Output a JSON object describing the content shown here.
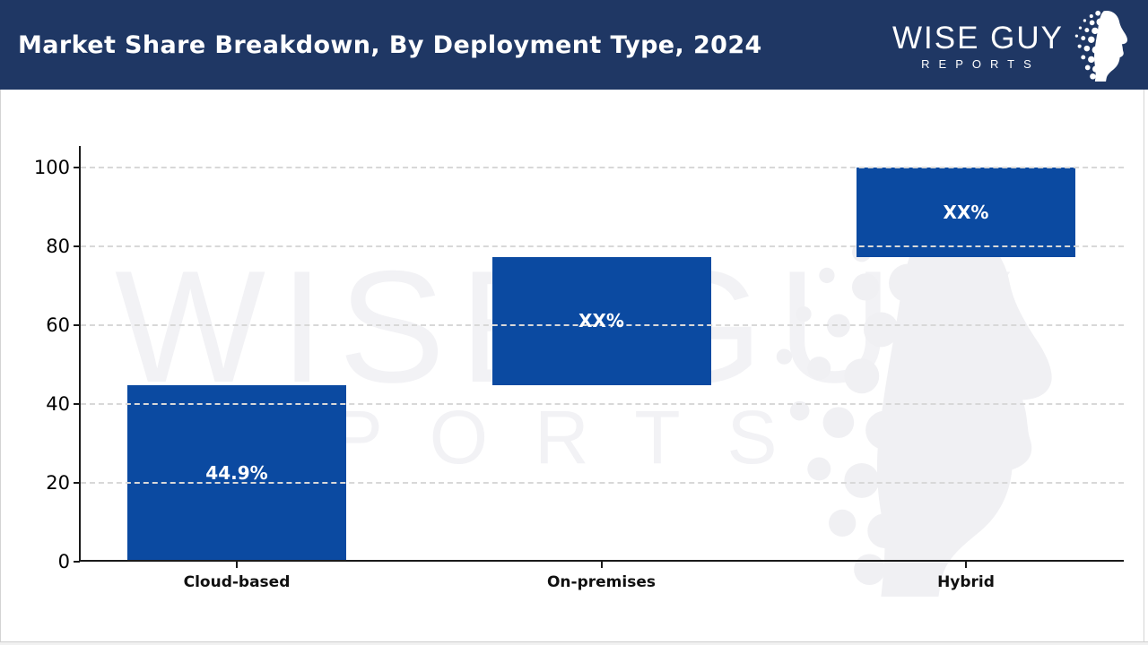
{
  "header": {
    "title": "Market Share Breakdown, By Deployment Type, 2024",
    "background_color": "#1F3764",
    "logo": {
      "wordmark": "WISE GUY",
      "subtext": "REPORTS"
    }
  },
  "watermark": {
    "wordmark": "WISE GUY",
    "subtext": "REPORTS"
  },
  "chart_data": {
    "type": "bar",
    "subtype": "floating-waterfall",
    "title": "Market Share Breakdown, By Deployment Type, 2024",
    "categories": [
      "Cloud-based",
      "On-premises",
      "Hybrid"
    ],
    "bars": [
      {
        "category": "Cloud-based",
        "start": 0,
        "end": 44.9,
        "label": "44.9%"
      },
      {
        "category": "On-premises",
        "start": 44.9,
        "end": 77.3,
        "label": "XX%"
      },
      {
        "category": "Hybrid",
        "start": 77.3,
        "end": 100,
        "label": "XX%"
      }
    ],
    "xlabel": "",
    "ylabel": "",
    "yticks": [
      0,
      20,
      40,
      60,
      80,
      100
    ],
    "ylim": [
      0,
      105.5
    ],
    "grid": "horizontal-dashed",
    "legend": "none",
    "bar_color": "#0B4AA1",
    "bar_label_color": "#FFFFFF",
    "grid_color": "#D8D8D8",
    "axis_color": "#1A1A1A",
    "tick_label_color": "#000000"
  }
}
